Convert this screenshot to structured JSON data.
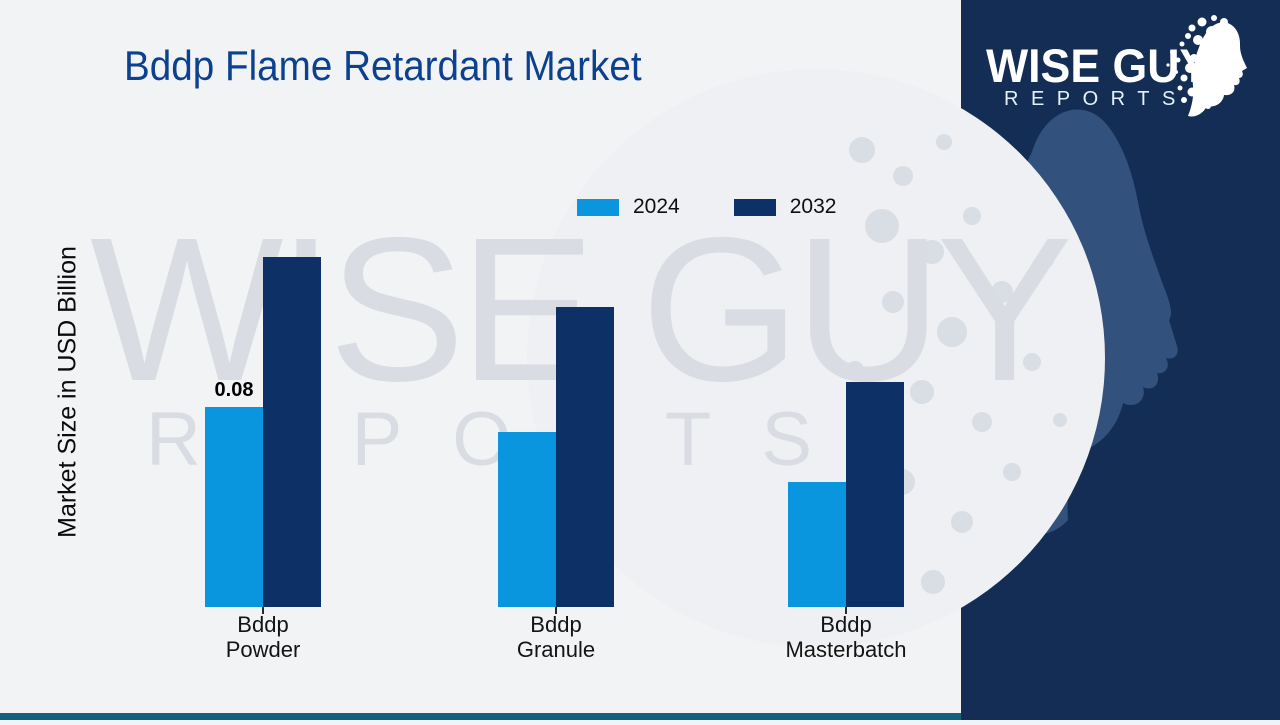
{
  "title": {
    "text": "Bddp Flame Retardant Market"
  },
  "logo": {
    "brand": "WISE GUY",
    "sub": "REPORTS"
  },
  "watermark": {
    "line1": "WISE GUY",
    "line2": "REPORTS"
  },
  "colors": {
    "series_2024": "#0996DF",
    "series_2032": "#0D3166",
    "title_blue": "#0c4190",
    "panel_navy": "#132d55",
    "face_silhouette_navy": "#33517d",
    "watermark_gray": "#d9dce2",
    "circle_gray": "#eef0f3",
    "bottom_accent_teal": "#15627b",
    "background": "#f2f3f4"
  },
  "chart_data": {
    "type": "bar",
    "title": "Bddp Flame Retardant Market",
    "categories": [
      "Bddp Powder",
      "Bddp Granule",
      "Bddp Masterbatch"
    ],
    "series": [
      {
        "name": "2024",
        "color": "#0996DF",
        "values": [
          0.08,
          0.07,
          0.05
        ],
        "labels": [
          "0.08",
          "",
          ""
        ]
      },
      {
        "name": "2032",
        "color": "#0D3166",
        "values": [
          0.14,
          0.12,
          0.09
        ],
        "labels": [
          "",
          "",
          ""
        ]
      }
    ],
    "xlabel": "",
    "ylabel": "Market Size in USD Billion",
    "ylim": [
      0,
      0.16
    ],
    "grid": false,
    "yaxis_ticks_visible": false,
    "legend_position": "top-center",
    "value_unit": "USD Billion"
  }
}
